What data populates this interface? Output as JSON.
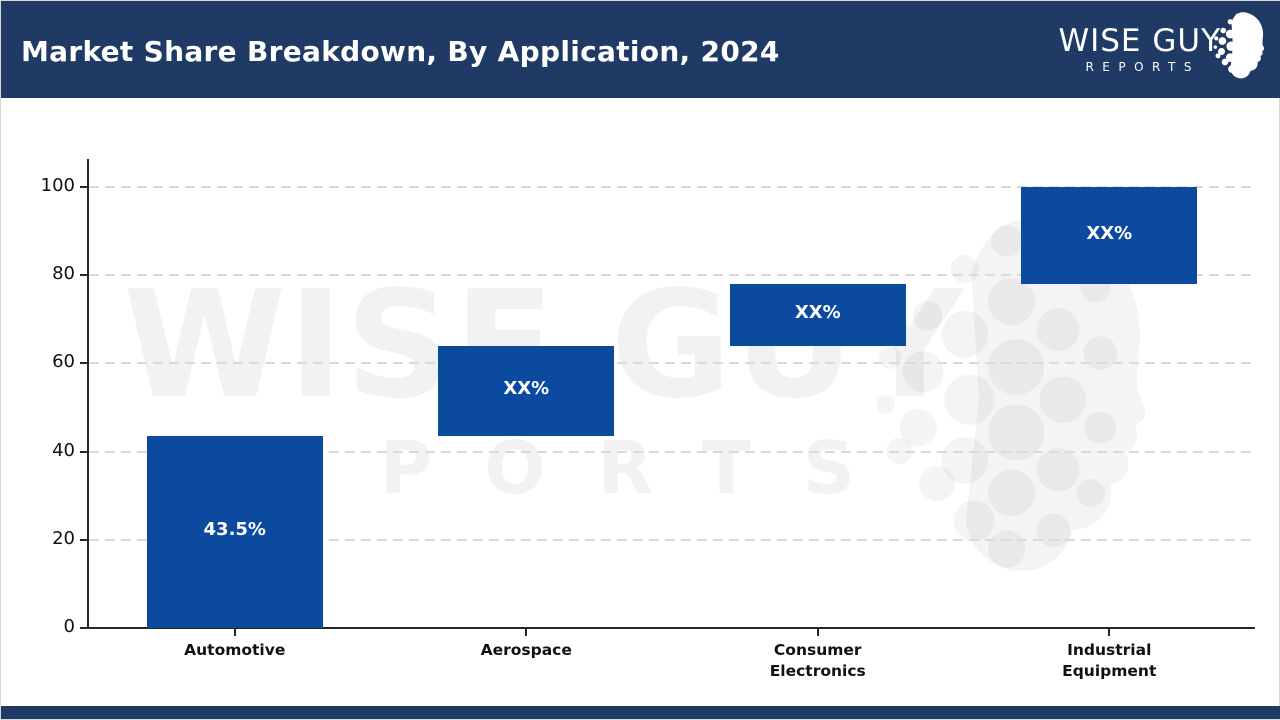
{
  "header": {
    "title": "Market Share Breakdown, By Application, 2024",
    "bg_color": "#1f3a65"
  },
  "logo": {
    "line1": "WISE GUY",
    "line2": "REPORTS",
    "head_icon": "dotted-head-profile"
  },
  "watermark": {
    "line1": "WISE GUY",
    "line2": "REPORTS",
    "head_icon": "dotted-head-profile"
  },
  "chart_data": {
    "type": "bar",
    "variant": "waterfall",
    "title": "Market Share Breakdown, By Application, 2024",
    "categories": [
      "Automotive",
      "Aerospace",
      "Consumer Electronics",
      "Industrial Equipment"
    ],
    "category_label_lines": [
      [
        "Automotive"
      ],
      [
        "Aerospace"
      ],
      [
        "Consumer",
        "Electronics"
      ],
      [
        "Industrial",
        "Equipment"
      ]
    ],
    "segments": [
      {
        "category": "Automotive",
        "start": 0,
        "end": 43.5,
        "label": "43.5%"
      },
      {
        "category": "Aerospace",
        "start": 43.5,
        "end": 64,
        "label": "XX%"
      },
      {
        "category": "Consumer Electronics",
        "start": 64,
        "end": 78,
        "label": "XX%"
      },
      {
        "category": "Industrial Equipment",
        "start": 78,
        "end": 100,
        "label": "XX%"
      }
    ],
    "yticks": [
      0,
      20,
      40,
      60,
      80,
      100
    ],
    "ylim": [
      0,
      105.9
    ],
    "xlabel": "",
    "ylabel": "",
    "bar_color": "#0b4a9f",
    "grid": {
      "axis": "y",
      "style": "dashed",
      "color": "#dadada"
    },
    "legend": "none"
  }
}
